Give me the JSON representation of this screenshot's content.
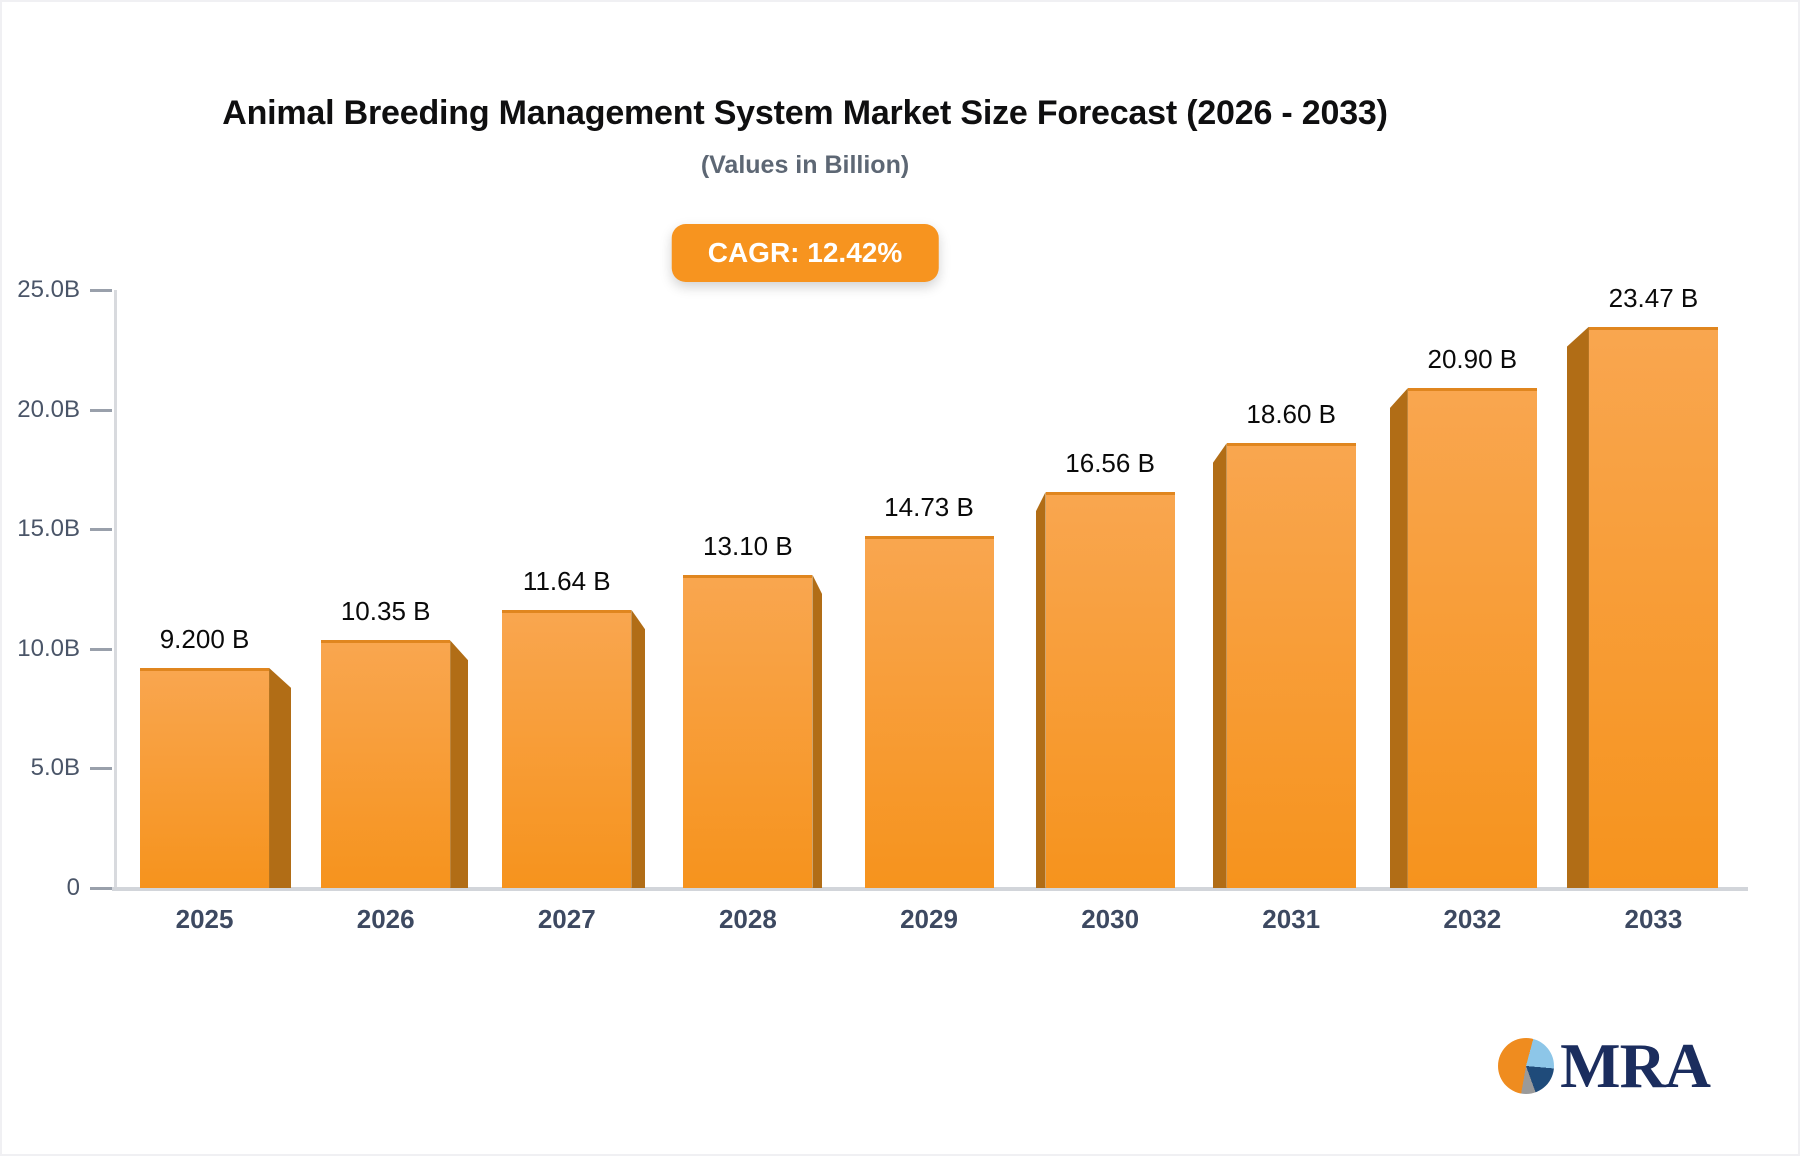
{
  "header": {
    "title": "Animal Breeding Management System Market Size Forecast (2026 - 2033)",
    "subtitle": "(Values in Billion)",
    "cagr_badge": "CAGR: 12.42%"
  },
  "chart_data": {
    "type": "bar",
    "title": "Animal Breeding Management System Market Size Forecast (2026 - 2033)",
    "subtitle": "(Values in Billion)",
    "categories": [
      "2025",
      "2026",
      "2027",
      "2028",
      "2029",
      "2030",
      "2031",
      "2032",
      "2033"
    ],
    "values": [
      9.2,
      10.35,
      11.64,
      13.1,
      14.73,
      16.56,
      18.6,
      20.9,
      23.47
    ],
    "value_labels": [
      "9.200 B",
      "10.35 B",
      "11.64 B",
      "13.10 B",
      "14.73 B",
      "16.56 B",
      "18.60 B",
      "20.90 B",
      "23.47 B"
    ],
    "cagr": "12.42%",
    "xlabel": "",
    "ylabel": "",
    "ylim": [
      0,
      25
    ],
    "grid": false,
    "legend": "none",
    "y_ticks": [
      {
        "value": 25,
        "label": "25.0B"
      },
      {
        "value": 20,
        "label": "20.0B"
      },
      {
        "value": 15,
        "label": "15.0B"
      },
      {
        "value": 10,
        "label": "10.0B"
      },
      {
        "value": 5,
        "label": "5.0B"
      },
      {
        "value": 0,
        "label": "0"
      }
    ]
  },
  "branding": {
    "logo_text": "MRA"
  },
  "colors": {
    "bar_front_top": "#f9a64f",
    "bar_front_bottom": "#f6931d",
    "bar_top_edge": "#e0861f",
    "bar_side": "#b16d16",
    "badge_bg": "#f7941f",
    "axis_gray": "#d5d7dc",
    "tick_text": "#4a5568",
    "x_label_text": "#3d4961",
    "logo_navy": "#1b2d5e"
  }
}
